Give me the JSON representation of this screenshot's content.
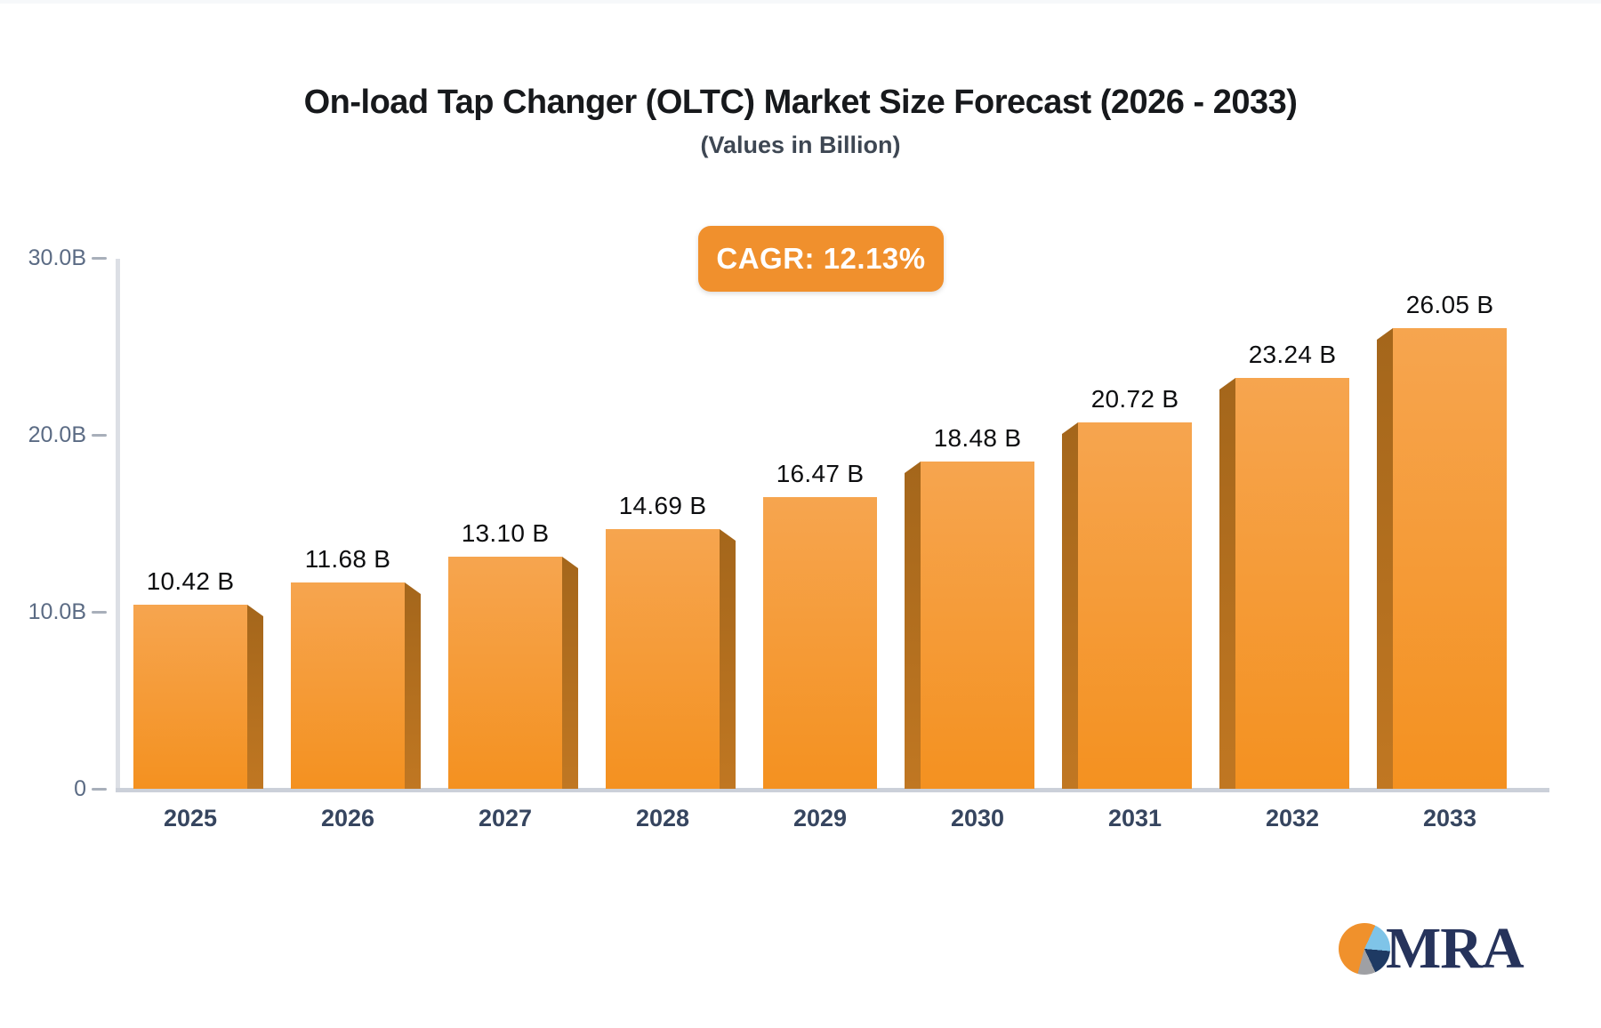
{
  "header": {
    "title": "On-load Tap Changer (OLTC) Market Size Forecast (2026 - 2033)",
    "subtitle": "(Values in Billion)",
    "cagr_label": "CAGR: 12.13%"
  },
  "chart_data": {
    "type": "bar",
    "title": "On-load Tap Changer (OLTC) Market Size Forecast (2026 - 2033)",
    "subtitle": "(Values in Billion)",
    "annotation": "CAGR: 12.13%",
    "categories": [
      "2025",
      "2026",
      "2027",
      "2028",
      "2029",
      "2030",
      "2031",
      "2032",
      "2033"
    ],
    "values": [
      10.42,
      11.68,
      13.1,
      14.69,
      16.47,
      18.48,
      20.72,
      23.24,
      26.05
    ],
    "value_labels": [
      "10.42 B",
      "11.68 B",
      "13.10 B",
      "14.69 B",
      "16.47 B",
      "18.48 B",
      "20.72 B",
      "23.24 B",
      "26.05 B"
    ],
    "xlabel": "",
    "ylabel": "",
    "ylim": [
      0,
      30
    ],
    "yticks": [
      {
        "label": "30.0B",
        "value": 30
      },
      {
        "label": "20.0B",
        "value": 20
      },
      {
        "label": "10.0B",
        "value": 10
      },
      {
        "label": "0",
        "value": 0
      }
    ],
    "grid": false,
    "legend": null,
    "annotation_position": "top-center",
    "colors": {
      "bar_front_top": "#F6A54F",
      "bar_front_bottom": "#F49120",
      "bar_side_top": "#A4661B",
      "bar_side_bottom": "#C07722",
      "badge_background": "#F0902D",
      "badge_text": "#FFFFFF",
      "title_text": "#17191C",
      "subtitle_text": "#3E4753",
      "value_label_text": "#0D0E10",
      "x_label_text": "#36455F",
      "y_label_text": "#5B6B84",
      "axis_line": "#DCDFE5",
      "baseline": "#CBD0D9"
    }
  },
  "logo": {
    "text": "MRA",
    "pie_orange": "#F0912C",
    "pie_lightblue": "#7FC4E8",
    "pie_navy": "#1E3A63",
    "pie_gray": "#9FA0A4",
    "text_color": "#26335B"
  }
}
